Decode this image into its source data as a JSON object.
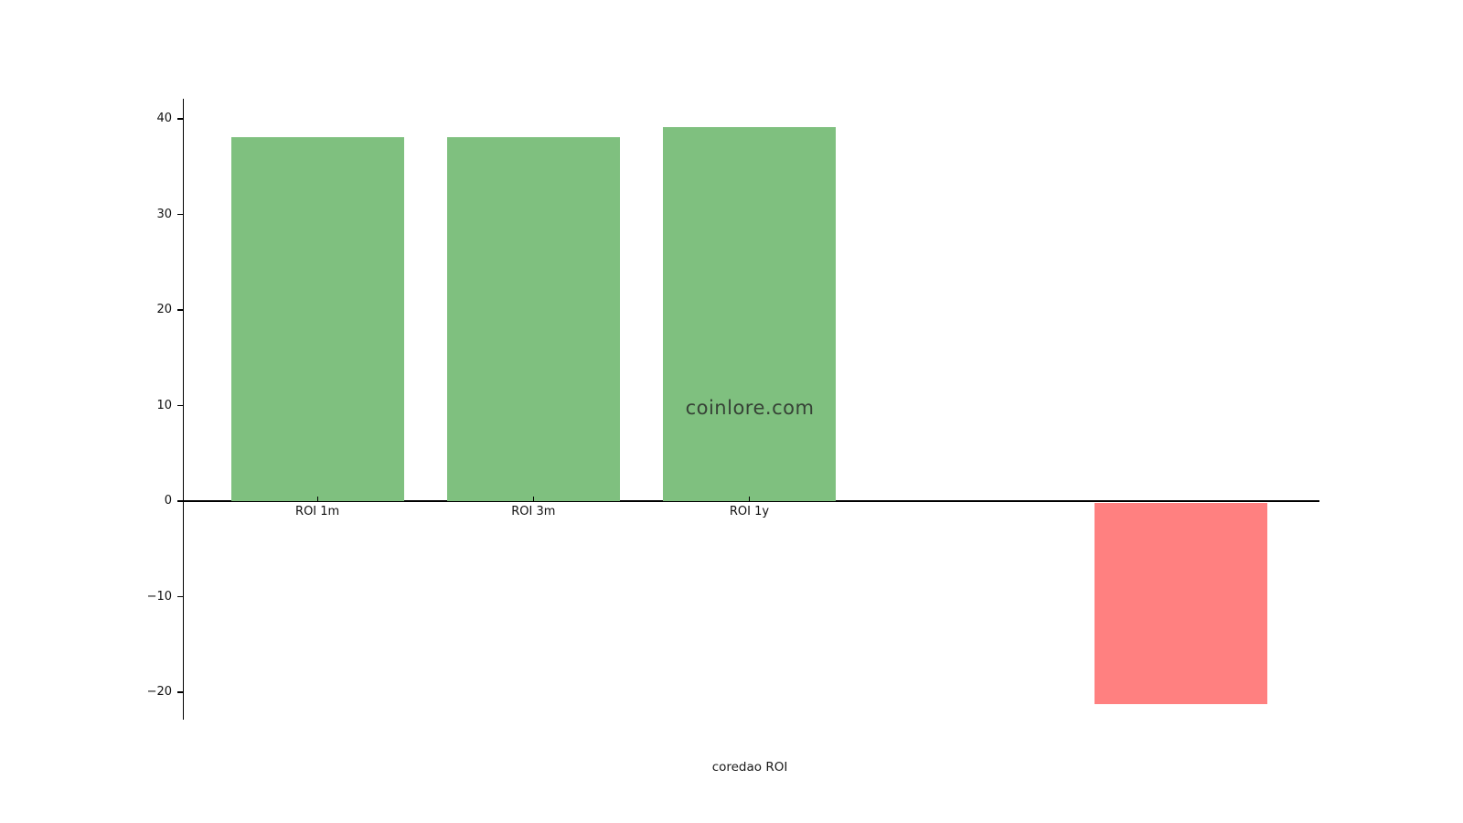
{
  "page": {
    "background": "#ffffff"
  },
  "watermark": {
    "text": "coinlore.com"
  },
  "chart_data": {
    "type": "bar",
    "title": "",
    "xlabel": "coredao ROI",
    "ylabel": "",
    "categories": [
      "ROI 1m",
      "ROI 3m",
      "ROI 1y",
      ""
    ],
    "values": [
      38.1,
      38.1,
      39.1,
      -21.1
    ],
    "bar_colors": [
      "#7fc07f",
      "#7fc07f",
      "#7fc07f",
      "#ff8080"
    ],
    "x_slots": [
      0,
      1,
      2,
      4
    ],
    "num_slots": 5,
    "xtick_labels": [
      "ROI 1m",
      "ROI 3m",
      "ROI 1y"
    ],
    "xtick_slots": [
      0,
      1,
      2
    ],
    "yticks": [
      40,
      30,
      20,
      10,
      0,
      -10,
      -20
    ],
    "ytick_labels": [
      "40",
      "30",
      "20",
      "10",
      "0",
      "−10",
      "−20"
    ],
    "ylim": [
      -22.9,
      42.1
    ],
    "grid": false,
    "legend": "none",
    "colors": {
      "positive_bar": "#7fc07f",
      "negative_bar": "#ff8080",
      "axis": "#000000"
    }
  }
}
